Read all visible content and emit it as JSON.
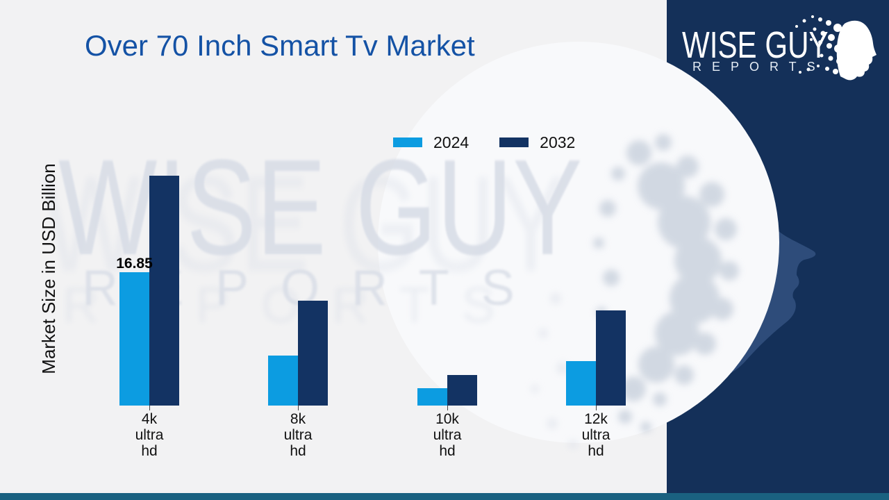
{
  "title": "Over 70 Inch Smart Tv Market",
  "y_axis_label": "Market Size in USD Billion",
  "watermark": {
    "line1": "WISE GUY",
    "line2": "REPORTS"
  },
  "logo": {
    "brand": "WISE GUY",
    "sub": "REPORTS"
  },
  "colors": {
    "background": "#f2f2f3",
    "panel_navy": "#143059",
    "bar_2024_blue": "#0c9ce1",
    "bar_2032_navy": "#133363",
    "title_blue": "#1452a5",
    "bottom_bar_teal": "#1a6180",
    "watermark_gray": "#d7dce6"
  },
  "chart_data": {
    "type": "bar",
    "title": "Over 70 Inch Smart Tv Market",
    "xlabel": "",
    "ylabel": "Market Size in USD Billion",
    "unit": "USD Billion",
    "categories": [
      "4k ultra hd",
      "8k ultra hd",
      "10k ultra hd",
      "12k ultra hd"
    ],
    "category_lines": [
      [
        "4k",
        "ultra",
        "hd"
      ],
      [
        "8k",
        "ultra",
        "hd"
      ],
      [
        "10k",
        "ultra",
        "hd"
      ],
      [
        "12k",
        "ultra",
        "hd"
      ]
    ],
    "series": [
      {
        "name": "2024",
        "color": "#0c9ce1",
        "values": [
          16.85,
          6.3,
          2.2,
          5.6
        ]
      },
      {
        "name": "2032",
        "color": "#133363",
        "values": [
          29.05,
          13.25,
          3.85,
          12.0
        ]
      }
    ],
    "data_labels": [
      {
        "series": "2024",
        "series_index": 0,
        "category": "4k ultra hd",
        "category_index": 0,
        "text": "16.85"
      }
    ],
    "legend_position": "top-center",
    "gridlines": false,
    "y_axis_ticks_visible": false,
    "ylim": [
      0,
      31
    ]
  }
}
